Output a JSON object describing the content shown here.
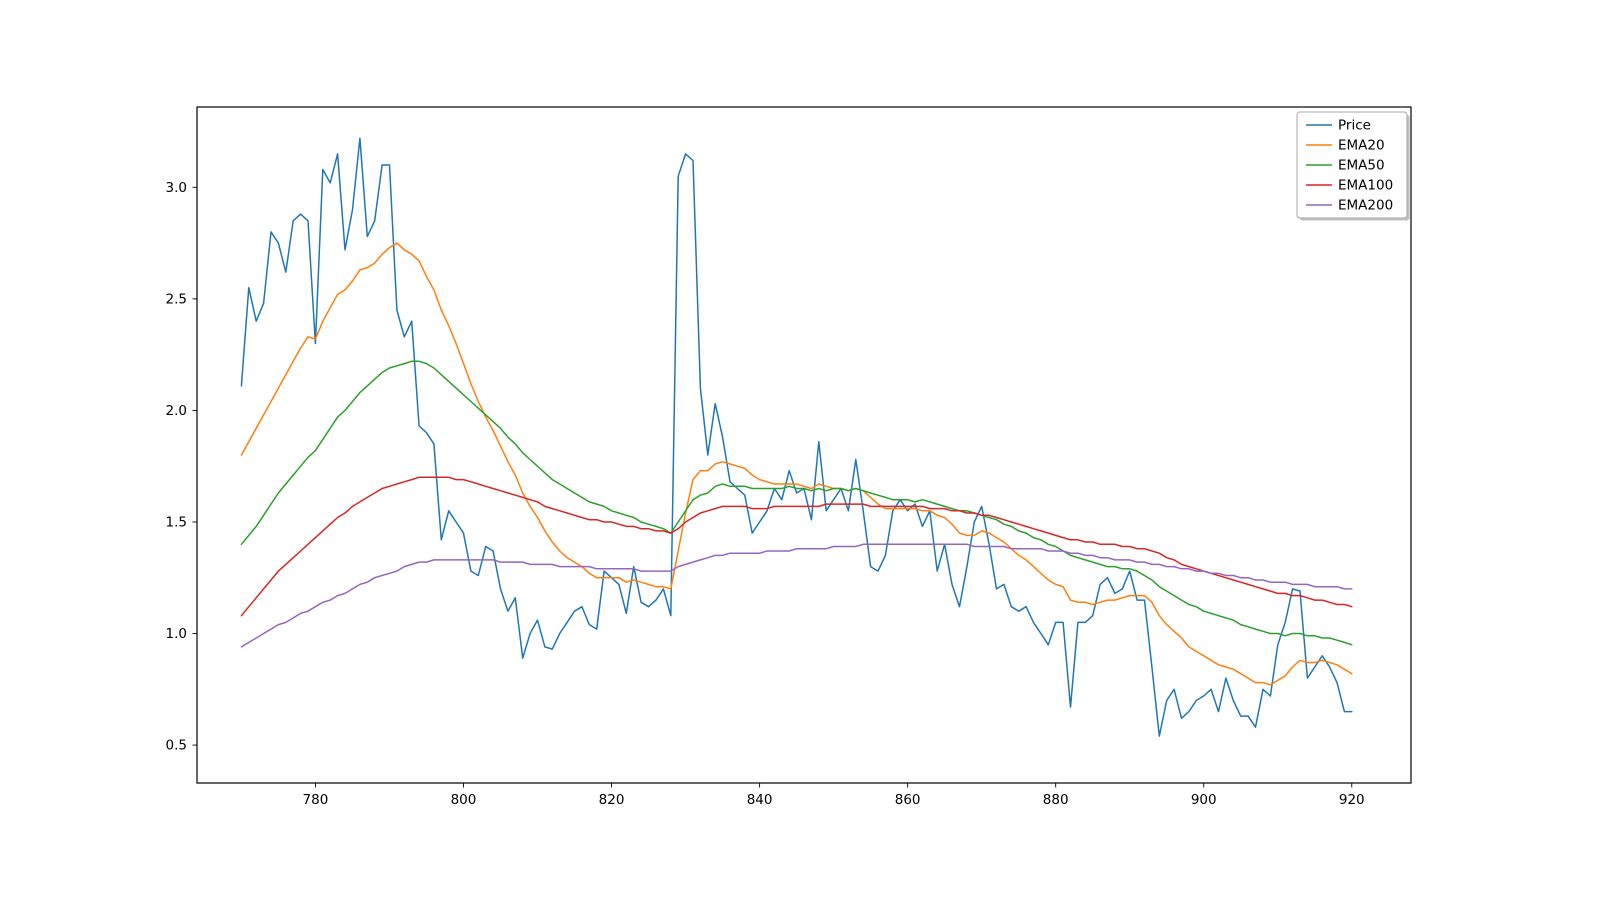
{
  "figure": {
    "background": "#ffffff",
    "axes_background": "#ffffff",
    "axes_border_color": "#000000"
  },
  "chart_data": {
    "type": "line",
    "title": "",
    "xlabel": "",
    "ylabel": "",
    "grid": false,
    "xlim": [
      764,
      928
    ],
    "ylim": [
      0.33,
      3.36
    ],
    "xticks": [
      780,
      800,
      820,
      840,
      860,
      880,
      900,
      920
    ],
    "yticks": [
      0.5,
      1.0,
      1.5,
      2.0,
      2.5,
      3.0
    ],
    "legend": {
      "position": "upper right",
      "entries": [
        "Price",
        "EMA20",
        "EMA50",
        "EMA100",
        "EMA200"
      ]
    },
    "x_start": 770,
    "x_step": 1,
    "series": [
      {
        "name": "Price",
        "color": "#1f77b4",
        "values": [
          2.11,
          2.55,
          2.4,
          2.48,
          2.8,
          2.75,
          2.62,
          2.85,
          2.88,
          2.85,
          2.3,
          3.08,
          3.02,
          3.15,
          2.72,
          2.9,
          3.22,
          2.78,
          2.85,
          3.1,
          3.1,
          2.45,
          2.33,
          2.4,
          1.93,
          1.9,
          1.85,
          1.42,
          1.55,
          1.5,
          1.45,
          1.28,
          1.26,
          1.39,
          1.37,
          1.2,
          1.1,
          1.16,
          0.89,
          1.0,
          1.06,
          0.94,
          0.93,
          1.0,
          1.05,
          1.1,
          1.12,
          1.04,
          1.02,
          1.28,
          1.25,
          1.22,
          1.09,
          1.3,
          1.14,
          1.12,
          1.15,
          1.2,
          1.08,
          3.05,
          3.15,
          3.12,
          2.1,
          1.8,
          2.03,
          1.88,
          1.68,
          1.65,
          1.62,
          1.45,
          1.5,
          1.55,
          1.65,
          1.6,
          1.73,
          1.63,
          1.65,
          1.51,
          1.86,
          1.55,
          1.6,
          1.65,
          1.55,
          1.78,
          1.55,
          1.3,
          1.28,
          1.35,
          1.55,
          1.6,
          1.55,
          1.58,
          1.48,
          1.55,
          1.28,
          1.4,
          1.22,
          1.12,
          1.3,
          1.5,
          1.57,
          1.4,
          1.2,
          1.22,
          1.12,
          1.1,
          1.12,
          1.05,
          1.0,
          0.95,
          1.05,
          1.05,
          0.67,
          1.05,
          1.05,
          1.08,
          1.22,
          1.25,
          1.18,
          1.2,
          1.28,
          1.15,
          1.15,
          0.85,
          0.54,
          0.7,
          0.75,
          0.62,
          0.65,
          0.7,
          0.72,
          0.75,
          0.65,
          0.8,
          0.7,
          0.63,
          0.63,
          0.58,
          0.75,
          0.72,
          0.95,
          1.05,
          1.2,
          1.19,
          0.8,
          0.85,
          0.9,
          0.85,
          0.78,
          0.65,
          0.65
        ]
      },
      {
        "name": "EMA20",
        "color": "#ff7f0e",
        "values": [
          1.8,
          1.86,
          1.92,
          1.98,
          2.04,
          2.1,
          2.16,
          2.22,
          2.28,
          2.33,
          2.32,
          2.4,
          2.46,
          2.52,
          2.54,
          2.58,
          2.63,
          2.64,
          2.66,
          2.7,
          2.73,
          2.75,
          2.72,
          2.7,
          2.67,
          2.6,
          2.54,
          2.45,
          2.38,
          2.3,
          2.21,
          2.12,
          2.04,
          1.97,
          1.91,
          1.84,
          1.77,
          1.71,
          1.63,
          1.57,
          1.52,
          1.46,
          1.41,
          1.37,
          1.34,
          1.32,
          1.3,
          1.27,
          1.25,
          1.25,
          1.25,
          1.25,
          1.23,
          1.24,
          1.23,
          1.22,
          1.21,
          1.21,
          1.2,
          1.37,
          1.54,
          1.69,
          1.73,
          1.73,
          1.76,
          1.77,
          1.76,
          1.75,
          1.74,
          1.71,
          1.69,
          1.68,
          1.67,
          1.67,
          1.67,
          1.67,
          1.66,
          1.65,
          1.67,
          1.66,
          1.65,
          1.65,
          1.64,
          1.65,
          1.64,
          1.61,
          1.58,
          1.56,
          1.56,
          1.56,
          1.56,
          1.56,
          1.55,
          1.55,
          1.53,
          1.52,
          1.49,
          1.45,
          1.44,
          1.44,
          1.46,
          1.45,
          1.43,
          1.41,
          1.38,
          1.35,
          1.33,
          1.3,
          1.27,
          1.24,
          1.22,
          1.21,
          1.15,
          1.14,
          1.14,
          1.13,
          1.14,
          1.15,
          1.15,
          1.16,
          1.17,
          1.17,
          1.17,
          1.14,
          1.08,
          1.04,
          1.01,
          0.98,
          0.94,
          0.92,
          0.9,
          0.88,
          0.86,
          0.85,
          0.84,
          0.82,
          0.8,
          0.78,
          0.78,
          0.77,
          0.79,
          0.81,
          0.85,
          0.88,
          0.87,
          0.87,
          0.88,
          0.87,
          0.86,
          0.84,
          0.82
        ]
      },
      {
        "name": "EMA50",
        "color": "#2ca02c",
        "values": [
          1.4,
          1.44,
          1.48,
          1.53,
          1.58,
          1.63,
          1.67,
          1.71,
          1.75,
          1.79,
          1.82,
          1.87,
          1.92,
          1.97,
          2.0,
          2.04,
          2.08,
          2.11,
          2.14,
          2.17,
          2.19,
          2.2,
          2.21,
          2.22,
          2.22,
          2.21,
          2.19,
          2.16,
          2.13,
          2.1,
          2.07,
          2.04,
          2.01,
          1.98,
          1.95,
          1.92,
          1.88,
          1.85,
          1.81,
          1.78,
          1.75,
          1.72,
          1.69,
          1.67,
          1.65,
          1.63,
          1.61,
          1.59,
          1.58,
          1.57,
          1.55,
          1.54,
          1.53,
          1.52,
          1.5,
          1.49,
          1.48,
          1.47,
          1.45,
          1.5,
          1.55,
          1.6,
          1.62,
          1.63,
          1.66,
          1.67,
          1.66,
          1.66,
          1.66,
          1.65,
          1.65,
          1.65,
          1.65,
          1.65,
          1.66,
          1.65,
          1.65,
          1.64,
          1.65,
          1.64,
          1.65,
          1.65,
          1.64,
          1.65,
          1.64,
          1.63,
          1.62,
          1.61,
          1.6,
          1.6,
          1.6,
          1.59,
          1.6,
          1.59,
          1.58,
          1.57,
          1.56,
          1.55,
          1.55,
          1.54,
          1.53,
          1.52,
          1.51,
          1.49,
          1.48,
          1.46,
          1.45,
          1.43,
          1.42,
          1.4,
          1.39,
          1.37,
          1.35,
          1.34,
          1.33,
          1.32,
          1.31,
          1.3,
          1.3,
          1.29,
          1.29,
          1.28,
          1.26,
          1.24,
          1.21,
          1.19,
          1.17,
          1.15,
          1.13,
          1.12,
          1.1,
          1.09,
          1.08,
          1.07,
          1.06,
          1.04,
          1.03,
          1.02,
          1.01,
          1.0,
          1.0,
          0.99,
          1.0,
          1.0,
          0.99,
          0.99,
          0.98,
          0.98,
          0.97,
          0.96,
          0.95
        ]
      },
      {
        "name": "EMA100",
        "color": "#d62728",
        "values": [
          1.08,
          1.12,
          1.16,
          1.2,
          1.24,
          1.28,
          1.31,
          1.34,
          1.37,
          1.4,
          1.43,
          1.46,
          1.49,
          1.52,
          1.54,
          1.57,
          1.59,
          1.61,
          1.63,
          1.65,
          1.66,
          1.67,
          1.68,
          1.69,
          1.7,
          1.7,
          1.7,
          1.7,
          1.7,
          1.69,
          1.69,
          1.68,
          1.67,
          1.66,
          1.65,
          1.64,
          1.63,
          1.62,
          1.61,
          1.6,
          1.59,
          1.57,
          1.56,
          1.55,
          1.54,
          1.53,
          1.52,
          1.51,
          1.51,
          1.5,
          1.5,
          1.49,
          1.48,
          1.48,
          1.47,
          1.47,
          1.46,
          1.46,
          1.45,
          1.47,
          1.5,
          1.52,
          1.54,
          1.55,
          1.56,
          1.57,
          1.57,
          1.57,
          1.57,
          1.56,
          1.56,
          1.56,
          1.57,
          1.57,
          1.57,
          1.57,
          1.57,
          1.57,
          1.57,
          1.58,
          1.58,
          1.58,
          1.58,
          1.58,
          1.58,
          1.57,
          1.57,
          1.57,
          1.57,
          1.57,
          1.57,
          1.57,
          1.57,
          1.56,
          1.56,
          1.56,
          1.55,
          1.55,
          1.54,
          1.54,
          1.53,
          1.53,
          1.52,
          1.51,
          1.5,
          1.49,
          1.48,
          1.47,
          1.46,
          1.45,
          1.44,
          1.43,
          1.42,
          1.42,
          1.41,
          1.41,
          1.4,
          1.4,
          1.4,
          1.39,
          1.39,
          1.38,
          1.38,
          1.37,
          1.36,
          1.34,
          1.33,
          1.31,
          1.3,
          1.29,
          1.28,
          1.27,
          1.26,
          1.25,
          1.24,
          1.23,
          1.22,
          1.21,
          1.2,
          1.19,
          1.18,
          1.18,
          1.17,
          1.17,
          1.16,
          1.15,
          1.15,
          1.14,
          1.13,
          1.13,
          1.12
        ]
      },
      {
        "name": "EMA200",
        "color": "#9467bd",
        "values": [
          0.94,
          0.96,
          0.98,
          1.0,
          1.02,
          1.04,
          1.05,
          1.07,
          1.09,
          1.1,
          1.12,
          1.14,
          1.15,
          1.17,
          1.18,
          1.2,
          1.22,
          1.23,
          1.25,
          1.26,
          1.27,
          1.28,
          1.3,
          1.31,
          1.32,
          1.32,
          1.33,
          1.33,
          1.33,
          1.33,
          1.33,
          1.33,
          1.33,
          1.33,
          1.33,
          1.32,
          1.32,
          1.32,
          1.32,
          1.31,
          1.31,
          1.31,
          1.31,
          1.3,
          1.3,
          1.3,
          1.3,
          1.3,
          1.29,
          1.29,
          1.29,
          1.29,
          1.29,
          1.29,
          1.28,
          1.28,
          1.28,
          1.28,
          1.28,
          1.3,
          1.31,
          1.32,
          1.33,
          1.34,
          1.35,
          1.35,
          1.36,
          1.36,
          1.36,
          1.36,
          1.36,
          1.37,
          1.37,
          1.37,
          1.37,
          1.38,
          1.38,
          1.38,
          1.38,
          1.38,
          1.39,
          1.39,
          1.39,
          1.39,
          1.4,
          1.4,
          1.4,
          1.4,
          1.4,
          1.4,
          1.4,
          1.4,
          1.4,
          1.4,
          1.4,
          1.4,
          1.4,
          1.4,
          1.4,
          1.39,
          1.39,
          1.39,
          1.39,
          1.39,
          1.38,
          1.38,
          1.38,
          1.38,
          1.38,
          1.37,
          1.37,
          1.37,
          1.36,
          1.36,
          1.35,
          1.35,
          1.34,
          1.34,
          1.33,
          1.33,
          1.33,
          1.32,
          1.32,
          1.31,
          1.31,
          1.3,
          1.3,
          1.29,
          1.29,
          1.28,
          1.28,
          1.27,
          1.27,
          1.26,
          1.26,
          1.25,
          1.25,
          1.24,
          1.24,
          1.23,
          1.23,
          1.23,
          1.22,
          1.22,
          1.22,
          1.21,
          1.21,
          1.21,
          1.21,
          1.2,
          1.2
        ]
      }
    ]
  }
}
